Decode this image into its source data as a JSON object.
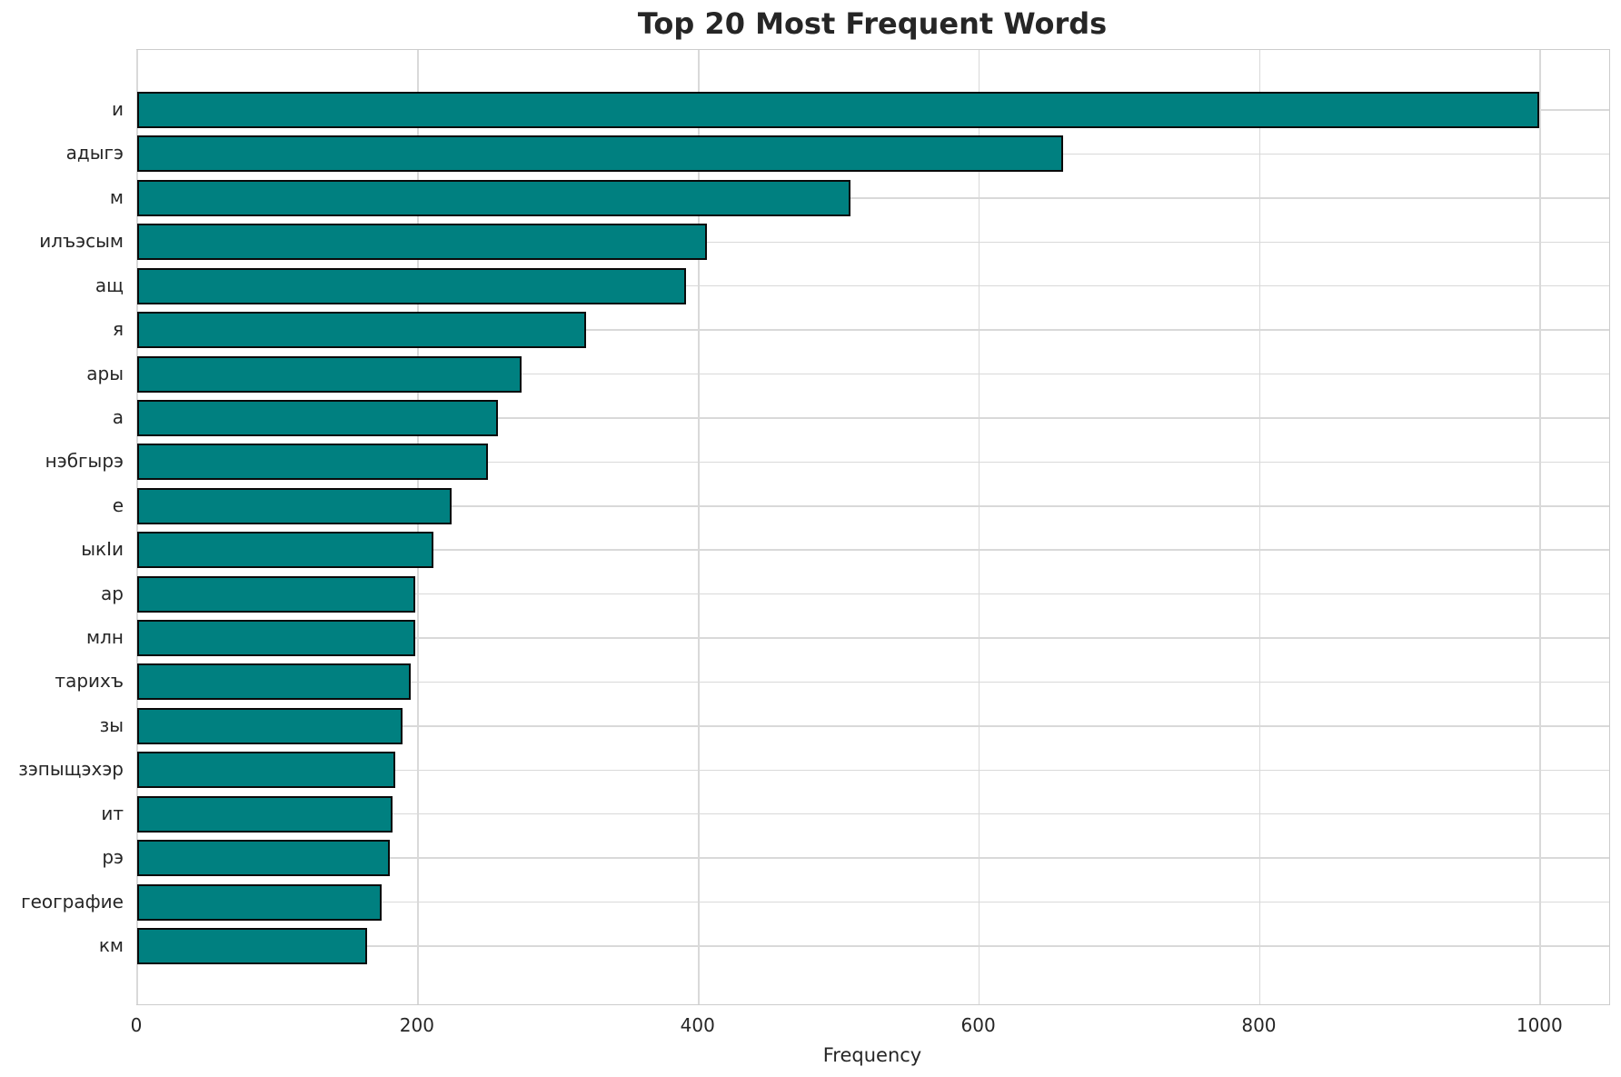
{
  "chart_data": {
    "type": "bar",
    "orientation": "horizontal",
    "title": "Top 20 Most Frequent Words",
    "xlabel": "Frequency",
    "ylabel": "",
    "categories": [
      "и",
      "адыгэ",
      "м",
      "илъэсым",
      "ащ",
      "я",
      "ары",
      "а",
      "нэбгырэ",
      "е",
      "ыкIи",
      "ар",
      "млн",
      "тарихъ",
      "зы",
      "зэпыщэхэр",
      "ит",
      "рэ",
      "географие",
      "км"
    ],
    "values": [
      999,
      660,
      508,
      406,
      391,
      320,
      274,
      257,
      250,
      224,
      211,
      198,
      198,
      195,
      189,
      184,
      182,
      180,
      174,
      164
    ],
    "xlim": [
      0,
      1049
    ],
    "xticks": [
      0,
      200,
      400,
      600,
      800,
      1000
    ],
    "grid": true,
    "legend": false,
    "bar_color": "#008080",
    "bar_edge_color": "#0a0a0a",
    "grid_color": "#d9d9d9",
    "spine_color": "#cccccc",
    "text_color": "#262626"
  }
}
